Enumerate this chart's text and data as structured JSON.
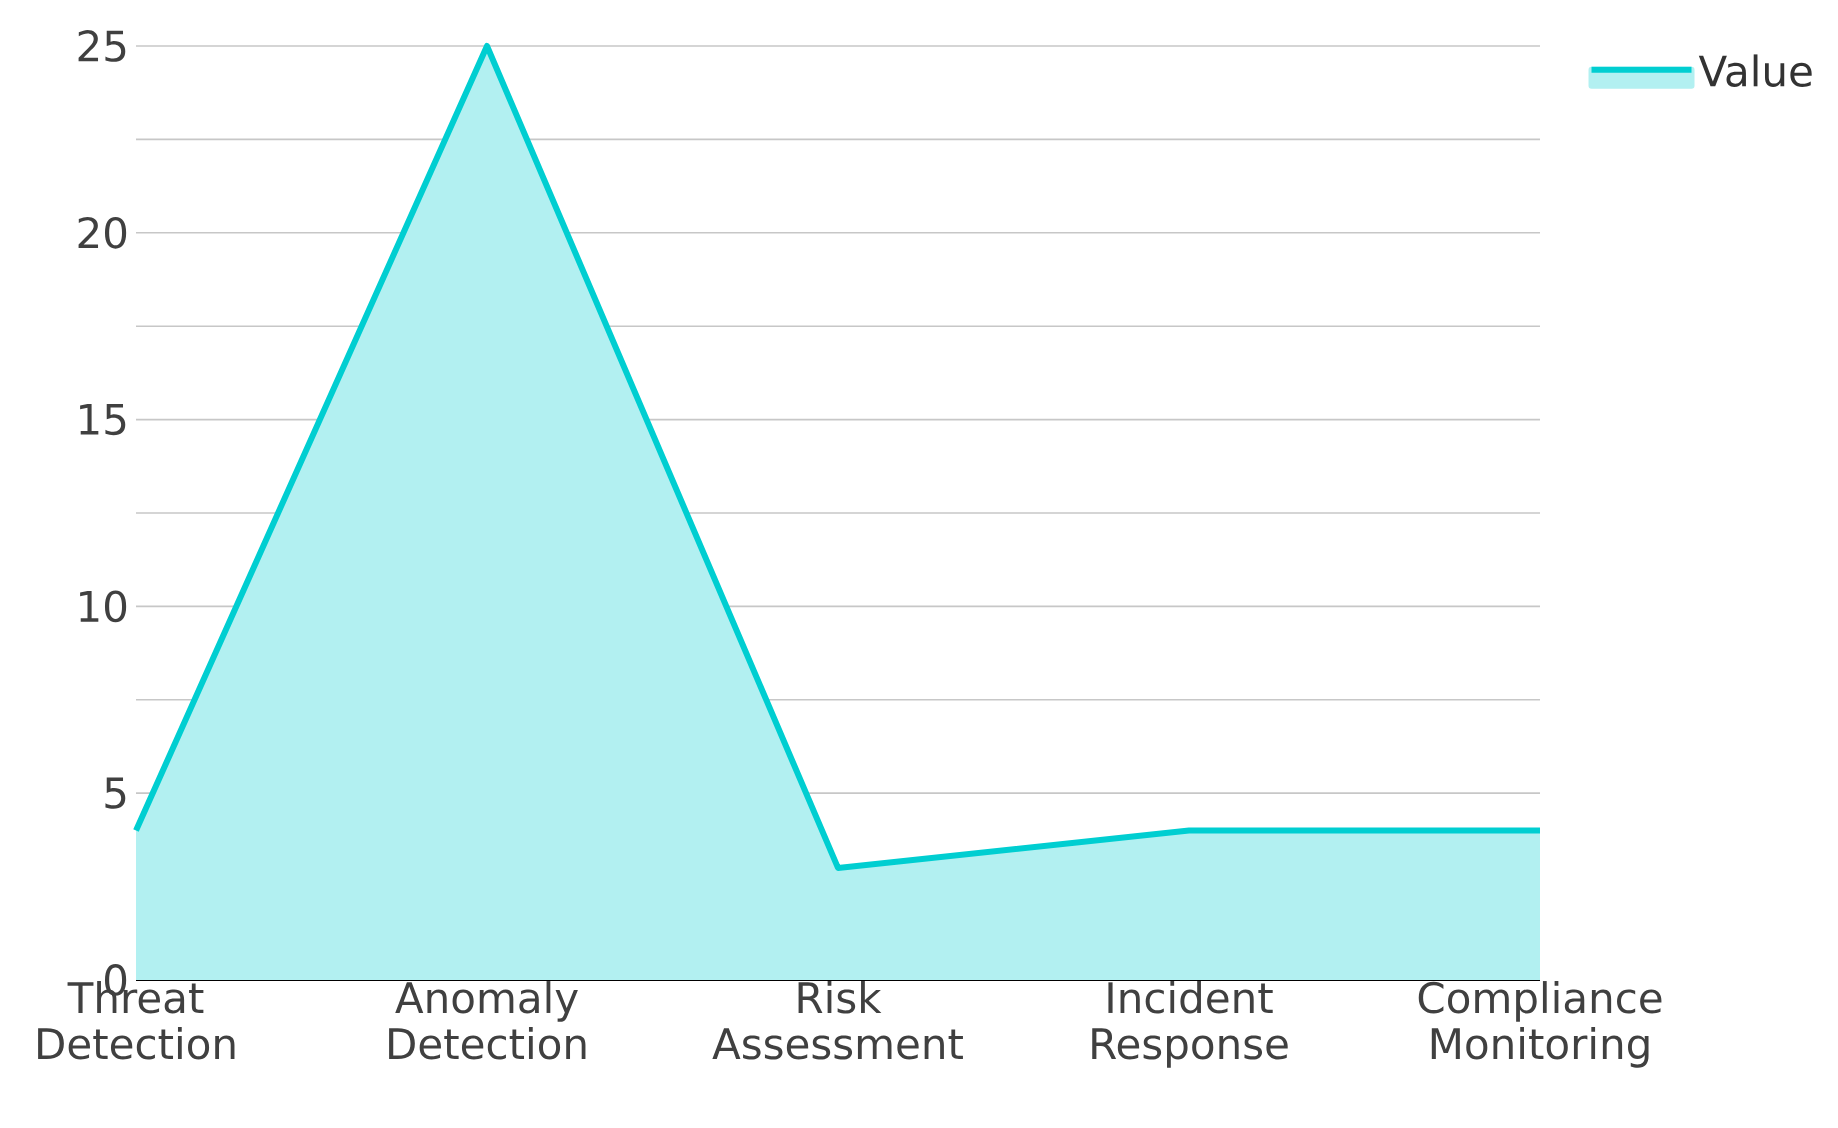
{
  "chart_data": {
    "type": "area",
    "categories": [
      "Threat Detection",
      "Anomaly Detection",
      "Risk Assessment",
      "Incident Response",
      "Compliance Monitoring"
    ],
    "series": [
      {
        "name": "Value",
        "color": "#00ced1",
        "values": [
          4,
          25,
          3,
          4,
          4
        ]
      }
    ],
    "ylim": [
      0,
      25
    ],
    "yticks": [
      0,
      {
        "value": 2.5,
        "label": null
      },
      5,
      {
        "value": 7.5,
        "label": null
      },
      10,
      {
        "value": 12.5,
        "label": null
      },
      15,
      {
        "value": 17.5,
        "label": null
      },
      20,
      {
        "value": 22.5,
        "label": null
      },
      25
    ],
    "grid": "y",
    "legend": "top right"
  }
}
